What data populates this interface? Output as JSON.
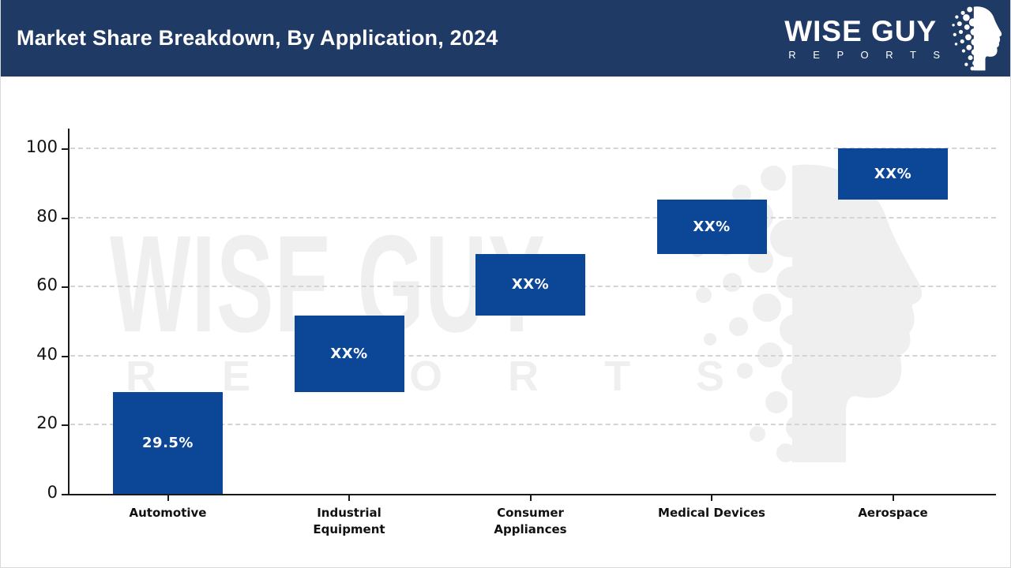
{
  "header": {
    "title": "Market Share Breakdown, By Application, 2024",
    "logo": {
      "wordmark": "WISE GUY",
      "subtext": "R E P O R T S"
    }
  },
  "watermark": {
    "wordmark": "WISE GUY",
    "subtext": "R E P O R T S"
  },
  "colors": {
    "header_bg": "#203a66",
    "bar": "#0b4697",
    "bar_label": "#ffffff",
    "grid": "#d4d4d4",
    "axis": "#1a1a1a",
    "text": "#111111",
    "watermark": "#efefef"
  },
  "chart_data": {
    "type": "bar",
    "subtype": "waterfall",
    "title": "Market Share Breakdown, By Application, 2024",
    "categories": [
      "Automotive",
      "Industrial Equipment",
      "Consumer Appliances",
      "Medical Devices",
      "Aerospace"
    ],
    "category_lines": [
      [
        "Automotive"
      ],
      [
        "Industrial",
        "Equipment"
      ],
      [
        "Consumer",
        "Appliances"
      ],
      [
        "Medical Devices"
      ],
      [
        "Aerospace"
      ]
    ],
    "bars": [
      {
        "category": "Automotive",
        "value_label": "29.5%",
        "start": 0,
        "end": 29.5,
        "segment": 29.5
      },
      {
        "category": "Industrial Equipment",
        "value_label": "XX%",
        "start": 29.5,
        "end": 51.7,
        "segment": 22.2
      },
      {
        "category": "Consumer Appliances",
        "value_label": "XX%",
        "start": 51.7,
        "end": 69.5,
        "segment": 17.8
      },
      {
        "category": "Medical Devices",
        "value_label": "XX%",
        "start": 69.5,
        "end": 85.2,
        "segment": 15.7
      },
      {
        "category": "Aerospace",
        "value_label": "XX%",
        "start": 85.2,
        "end": 100,
        "segment": 14.8
      }
    ],
    "yticks": [
      0,
      20,
      40,
      60,
      80,
      100
    ],
    "ylim": [
      0,
      105
    ],
    "xlabel": "",
    "ylabel": "",
    "grid": "horizontal-dashed",
    "legend": "none"
  }
}
